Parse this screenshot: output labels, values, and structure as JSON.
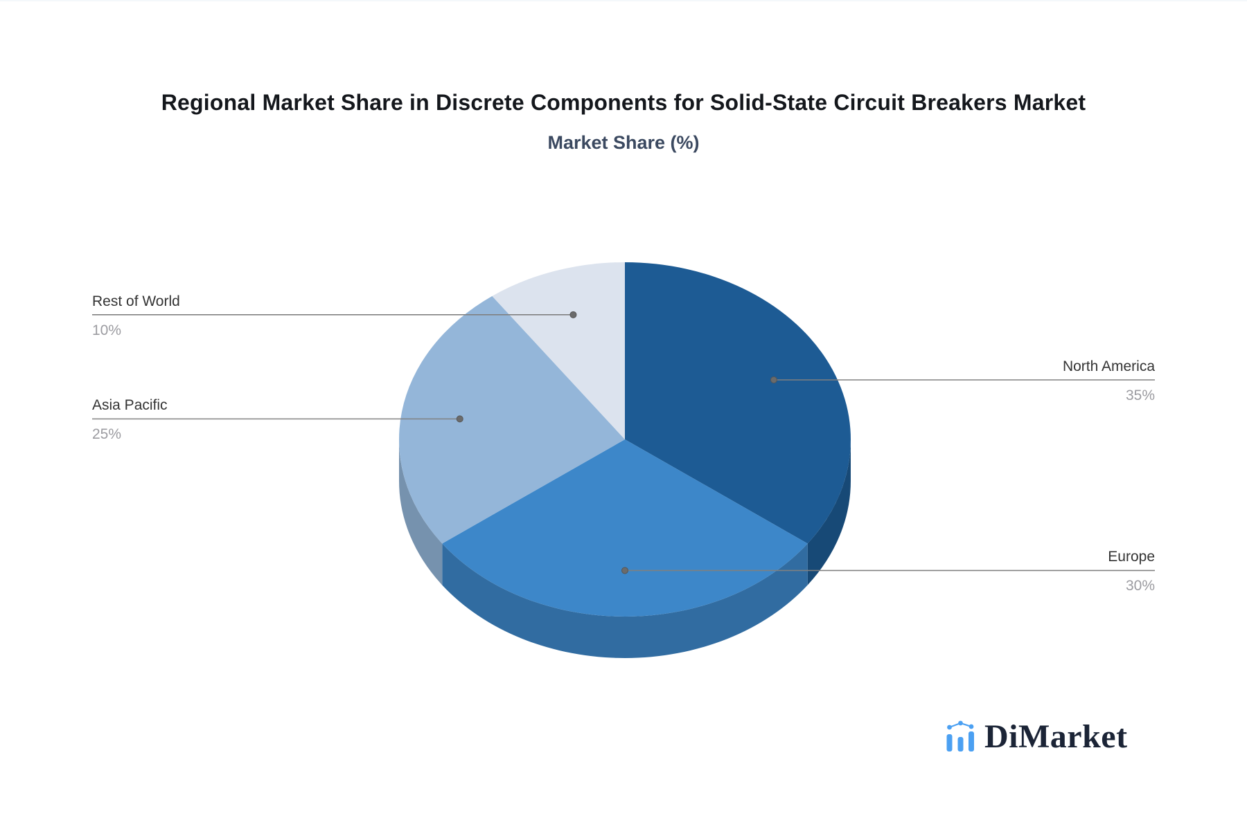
{
  "title": "Regional Market Share in Discrete Components for Solid-State Circuit Breakers Market",
  "subtitle": "Market Share (%)",
  "logo": {
    "text": "DiMarket",
    "icon": "bar-chart-trend-icon",
    "icon_color": "#4ba0f2",
    "text_color": "#1b2436"
  },
  "palette": {
    "title_text": "#14171c",
    "subtitle_text": "#3b4960",
    "label_text": "#333333",
    "percent_text": "#9b9ba0",
    "leader_line": "#808080",
    "background": "#ffffff"
  },
  "chart_data": {
    "type": "pie",
    "style": "3d",
    "title": "Regional Market Share in Discrete Components for Solid-State Circuit Breakers Market",
    "subtitle": "Market Share (%)",
    "unit": "%",
    "start_angle_deg": 0,
    "direction": "clockwise",
    "legend_position": "callout-labels",
    "slices": [
      {
        "label": "North America",
        "value": 35,
        "pct_label": "35%",
        "color": "#1d5b94",
        "side": "right"
      },
      {
        "label": "Europe",
        "value": 30,
        "pct_label": "30%",
        "color": "#3d87c9",
        "side": "right"
      },
      {
        "label": "Asia Pacific",
        "value": 25,
        "pct_label": "25%",
        "color": "#94b6d9",
        "side": "left"
      },
      {
        "label": "Rest of World",
        "value": 10,
        "pct_label": "10%",
        "color": "#dce3ee",
        "side": "left"
      }
    ]
  }
}
